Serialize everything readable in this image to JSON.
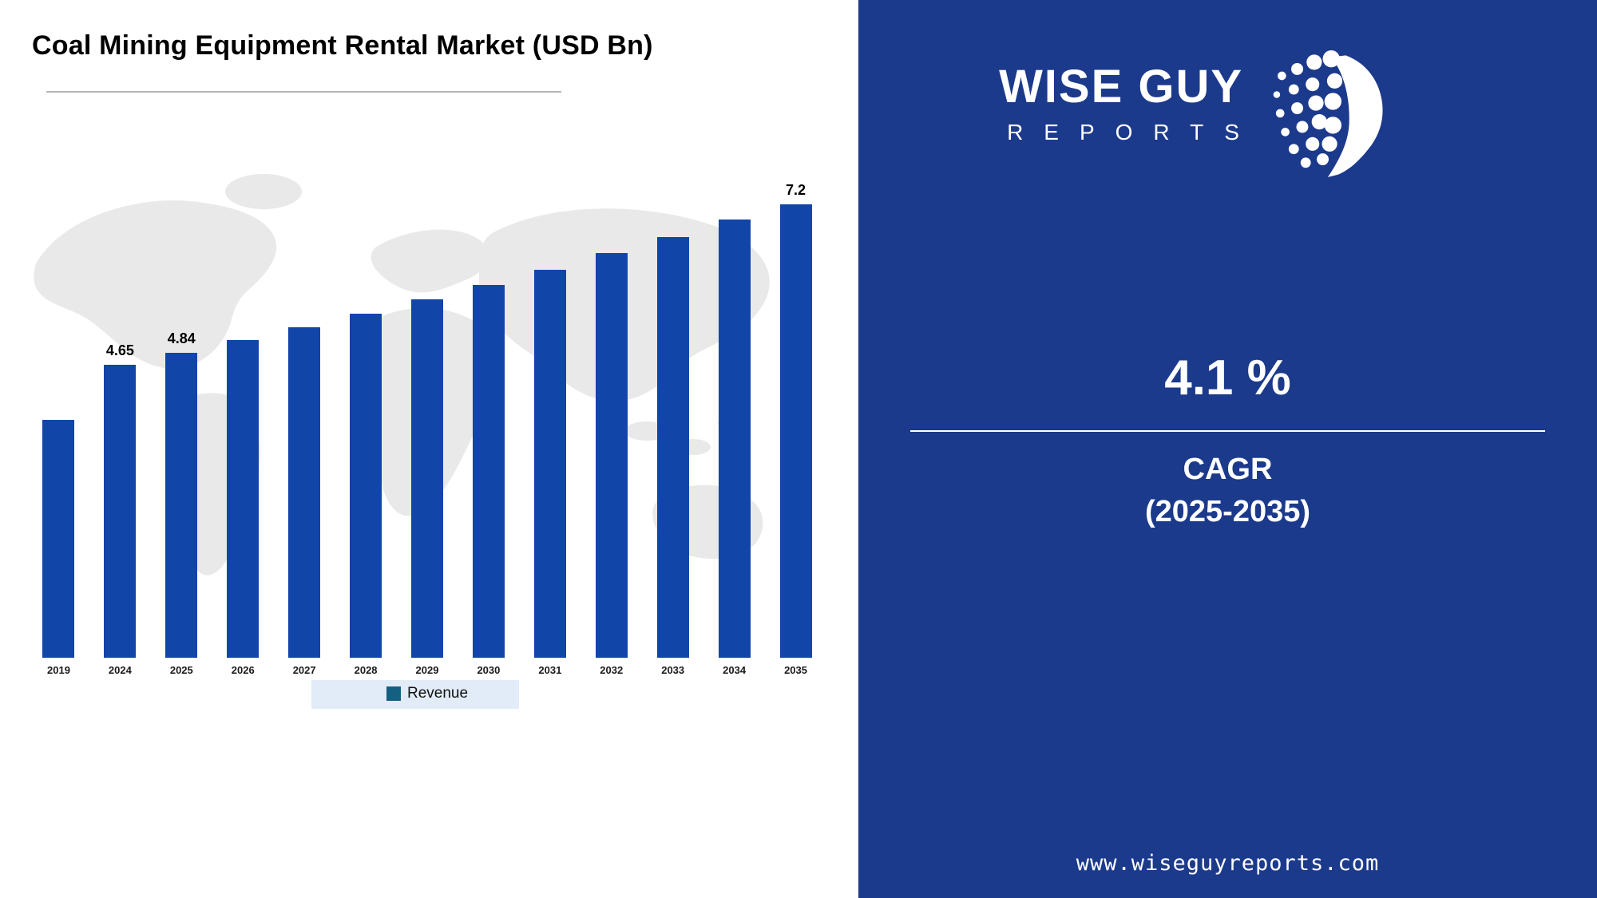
{
  "title": "Coal Mining Equipment Rental Market (USD Bn)",
  "chart_data": {
    "type": "bar",
    "title": "Coal Mining Equipment Rental Market (USD Bn)",
    "categories": [
      "2019",
      "2024",
      "2025",
      "2026",
      "2027",
      "2028",
      "2029",
      "2030",
      "2031",
      "2032",
      "2033",
      "2034",
      "2035"
    ],
    "values": [
      3.77,
      4.65,
      4.84,
      5.04,
      5.25,
      5.46,
      5.69,
      5.92,
      6.16,
      6.42,
      6.68,
      6.95,
      7.2
    ],
    "data_labels": {
      "2024": "4.65",
      "2025": "4.84",
      "2035": "7.2"
    },
    "xlabel": "",
    "ylabel": "",
    "ylim": [
      0,
      7.6
    ],
    "grid": false,
    "legend": [
      "Revenue"
    ],
    "legend_position": "bottom",
    "bar_color": "#1245a8"
  },
  "legend": {
    "label": "Revenue",
    "swatch_color": "#156082"
  },
  "panel": {
    "background": "#1c3a8c",
    "logo_line1": "WISE GUY",
    "logo_line2": "REPORTS",
    "cagr_value": "4.1 %",
    "cagr_label": "CAGR",
    "cagr_range": "(2025-2035)",
    "website": "www.wiseguyreports.com"
  }
}
